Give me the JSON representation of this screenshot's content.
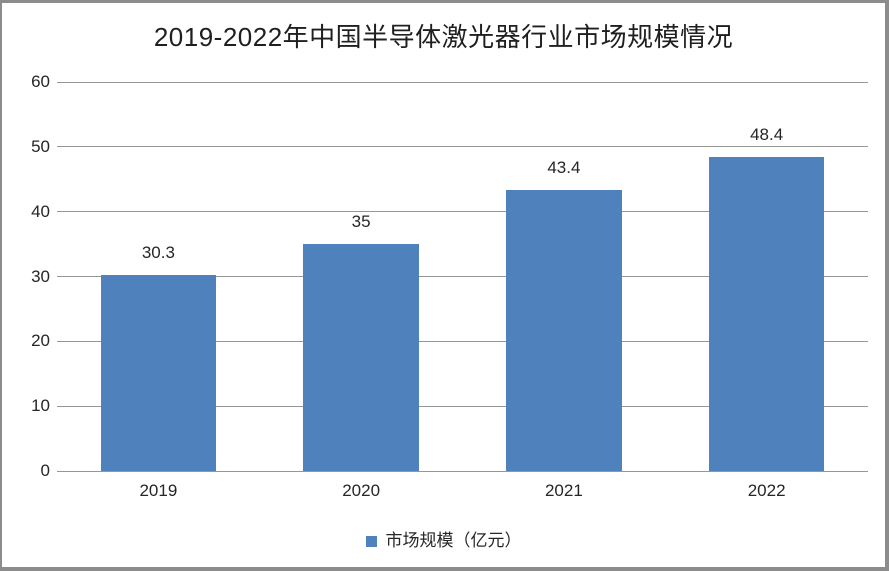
{
  "chart_data": {
    "type": "bar",
    "title": "2019-2022年中国半导体激光器行业市场规模情况",
    "categories": [
      "2019",
      "2020",
      "2021",
      "2022"
    ],
    "series": [
      {
        "name": "市场规模（亿元）",
        "values": [
          30.3,
          35,
          43.4,
          48.4
        ]
      }
    ],
    "data_labels": [
      "30.3",
      "35",
      "43.4",
      "48.4"
    ],
    "xlabel": "",
    "ylabel": "",
    "ylim": [
      0,
      60
    ],
    "yticks": [
      0,
      10,
      20,
      30,
      40,
      50,
      60
    ],
    "grid": true,
    "legend_position": "bottom",
    "colors": {
      "bar": "#4F81BD",
      "gridline": "#969696",
      "text": "#262626",
      "frame_border": "#8C8C8C",
      "background": "#FFFFFF"
    }
  }
}
